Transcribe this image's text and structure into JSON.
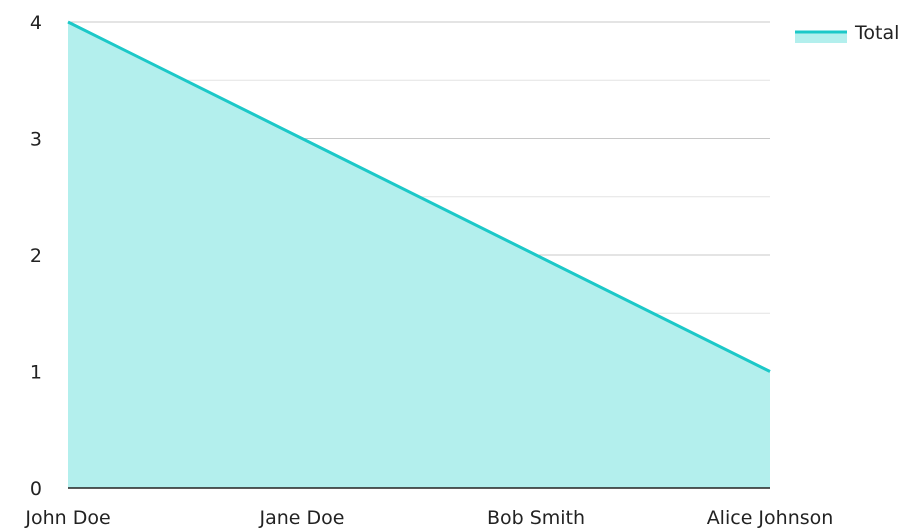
{
  "chart_data": {
    "type": "area",
    "categories": [
      "John Doe",
      "Jane Doe",
      "Bob Smith",
      "Alice Johnson"
    ],
    "series": [
      {
        "name": "Total",
        "values": [
          4,
          3,
          2,
          1
        ]
      }
    ],
    "title": "",
    "xlabel": "",
    "ylabel": "",
    "ylim": [
      0,
      4
    ],
    "yticks": [
      0,
      1,
      2,
      3,
      4
    ],
    "grid": true,
    "legend": {
      "position": "top-right"
    },
    "colors": {
      "line": "#1cc8c8",
      "fill": "#b3efed",
      "grid": "#cccccc",
      "axis": "#222222"
    }
  }
}
